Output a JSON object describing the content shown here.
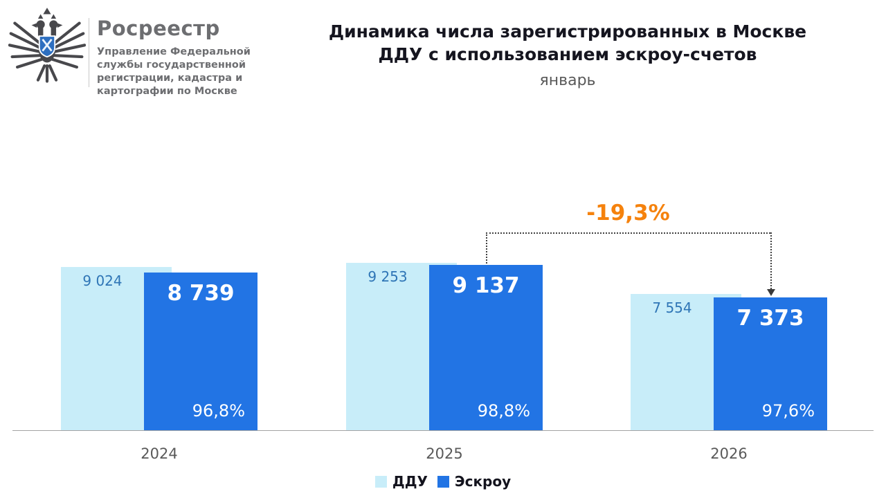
{
  "header": {
    "org_name": "Росреестр",
    "org_description": "Управление Федеральной службы государственной регистрации, кадастра и картографии по Москве",
    "title_line1": "Динамика числа зарегистрированных в Москве",
    "title_line2": "ДДУ с использованием эскроу-счетов",
    "subtitle": "январь"
  },
  "chart_data": {
    "type": "bar",
    "title": "Динамика числа зарегистрированных в Москве ДДУ с использованием эскроу-счетов",
    "subtitle": "январь",
    "categories": [
      "2024",
      "2025",
      "2026"
    ],
    "series": [
      {
        "name": "ДДУ",
        "color": "#c8edf9",
        "values": [
          9024,
          9253,
          7554
        ],
        "labels": [
          "9 024",
          "9 253",
          "7 554"
        ]
      },
      {
        "name": "Эскроу",
        "color": "#2274e4",
        "values": [
          8739,
          9137,
          7373
        ],
        "labels": [
          "8 739",
          "9 137",
          "7 373"
        ],
        "percent_labels": [
          "96,8%",
          "98,8%",
          "97,6%"
        ]
      }
    ],
    "annotation": {
      "text": "-19,3%",
      "color": "#f5820d",
      "from_category": "2025",
      "to_category": "2026"
    },
    "ylim": [
      0,
      9500
    ],
    "grid": false,
    "legend_position": "bottom"
  },
  "legend": {
    "items": [
      {
        "label": "ДДУ",
        "color": "#c8edf9"
      },
      {
        "label": "Эскроу",
        "color": "#2274e4"
      }
    ]
  },
  "colors": {
    "light_bar": "#c8edf9",
    "blue_bar": "#2274e4",
    "annotation_orange": "#f5820d",
    "title_text": "#15151f",
    "gray_text": "#595959",
    "org_gray": "#6d6e71",
    "light_bar_label": "#2e75b6"
  }
}
